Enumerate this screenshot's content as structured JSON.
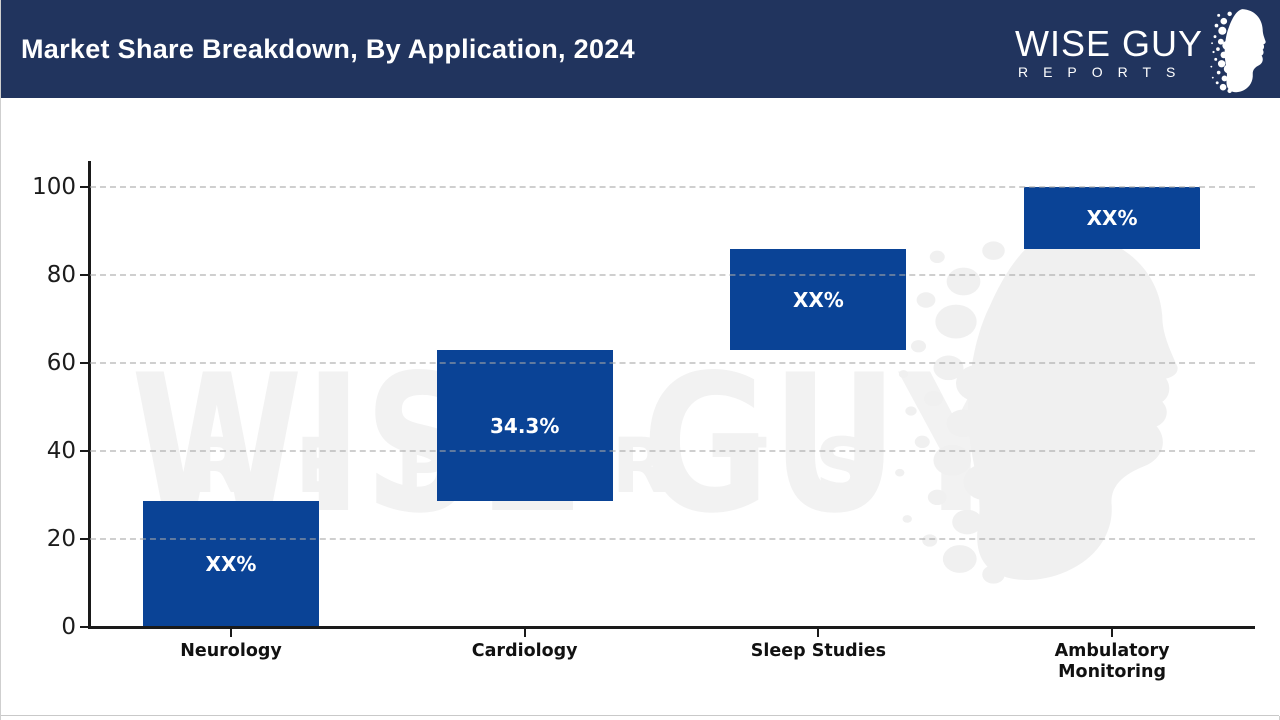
{
  "header": {
    "title": "Market Share Breakdown, By Application, 2024",
    "logo": {
      "line1": "WISE GUY",
      "line2": "REPORTS"
    }
  },
  "watermark": {
    "line1": "WISE GUY",
    "line2": "REPORTS"
  },
  "chart_data": {
    "type": "bar",
    "subtype": "stacked-waterfall-percentage",
    "title": "Market Share Breakdown, By Application, 2024",
    "categories": [
      "Neurology",
      "Cardiology",
      "Sleep Studies",
      "Ambulatory\nMonitoring"
    ],
    "segments": [
      {
        "category": "Neurology",
        "label": "XX%",
        "start": 0,
        "end": 28.6
      },
      {
        "category": "Cardiology",
        "label": "34.3%",
        "start": 28.6,
        "end": 62.9
      },
      {
        "category": "Sleep Studies",
        "label": "XX%",
        "start": 62.9,
        "end": 85.9
      },
      {
        "category": "Ambulatory Monitoring",
        "label": "XX%",
        "start": 85.9,
        "end": 100
      }
    ],
    "xlabel": "",
    "ylabel": "",
    "yticks": [
      0,
      20,
      40,
      60,
      80,
      100
    ],
    "ylim": [
      0,
      106
    ],
    "grid": "horizontal-dashed",
    "legend": "none",
    "colors": {
      "bar": "#0a4396",
      "header_background": "#21345e",
      "grid": "#dcdcdc",
      "axis": "#1a1a1a",
      "bar_label": "#ffffff",
      "watermark": "#f2f2f2"
    }
  }
}
